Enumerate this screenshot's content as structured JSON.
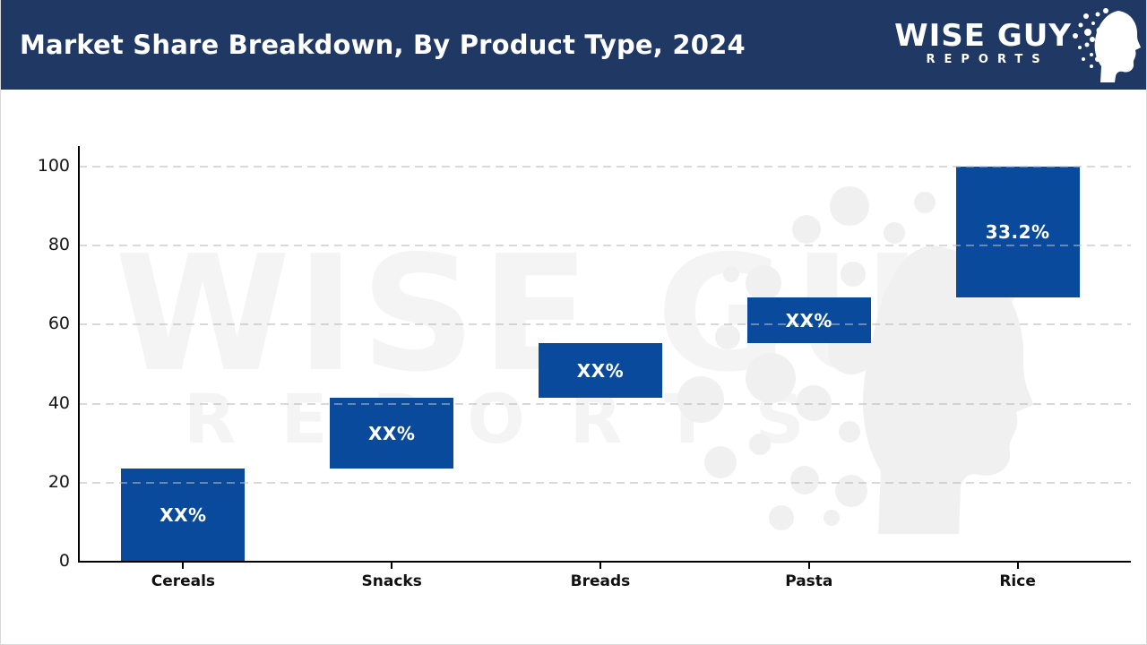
{
  "page": {
    "background": "#ffffff",
    "header_navy": "#1f3864",
    "bar_blue": "#0a4a9c",
    "grid_gray": "#d6d6d6",
    "watermark_gray": "#f4f4f4"
  },
  "header": {
    "title": "Market Share Breakdown, By Product Type, 2024",
    "logo": {
      "line1": "WISE GUY",
      "line2": "REPORTS"
    }
  },
  "watermark": {
    "line1": "WISE GUY",
    "line2": "REPORTS"
  },
  "chart_data": {
    "type": "bar",
    "variant": "floating-waterfall-segments",
    "title": "Market Share Breakdown, By Product Type, 2024",
    "categories": [
      "Cereals",
      "Snacks",
      "Breads",
      "Pasta",
      "Rice"
    ],
    "bars": [
      {
        "category": "Cereals",
        "start": 0,
        "end": 23.5,
        "label": "XX%"
      },
      {
        "category": "Snacks",
        "start": 23.5,
        "end": 41.4,
        "label": "XX%"
      },
      {
        "category": "Breads",
        "start": 41.4,
        "end": 55.4,
        "label": "XX%"
      },
      {
        "category": "Pasta",
        "start": 55.4,
        "end": 66.8,
        "label": "XX%"
      },
      {
        "category": "Rice",
        "start": 66.8,
        "end": 100,
        "label": "33.2%"
      }
    ],
    "yticks": [
      0,
      20,
      40,
      60,
      80,
      100
    ],
    "ylim": [
      0,
      107
    ],
    "xlabel": "",
    "ylabel": "",
    "grid": "horizontal-dashed",
    "legend": "none",
    "bar_color": "#0a4a9c",
    "bar_label_color": "#ffffff"
  }
}
